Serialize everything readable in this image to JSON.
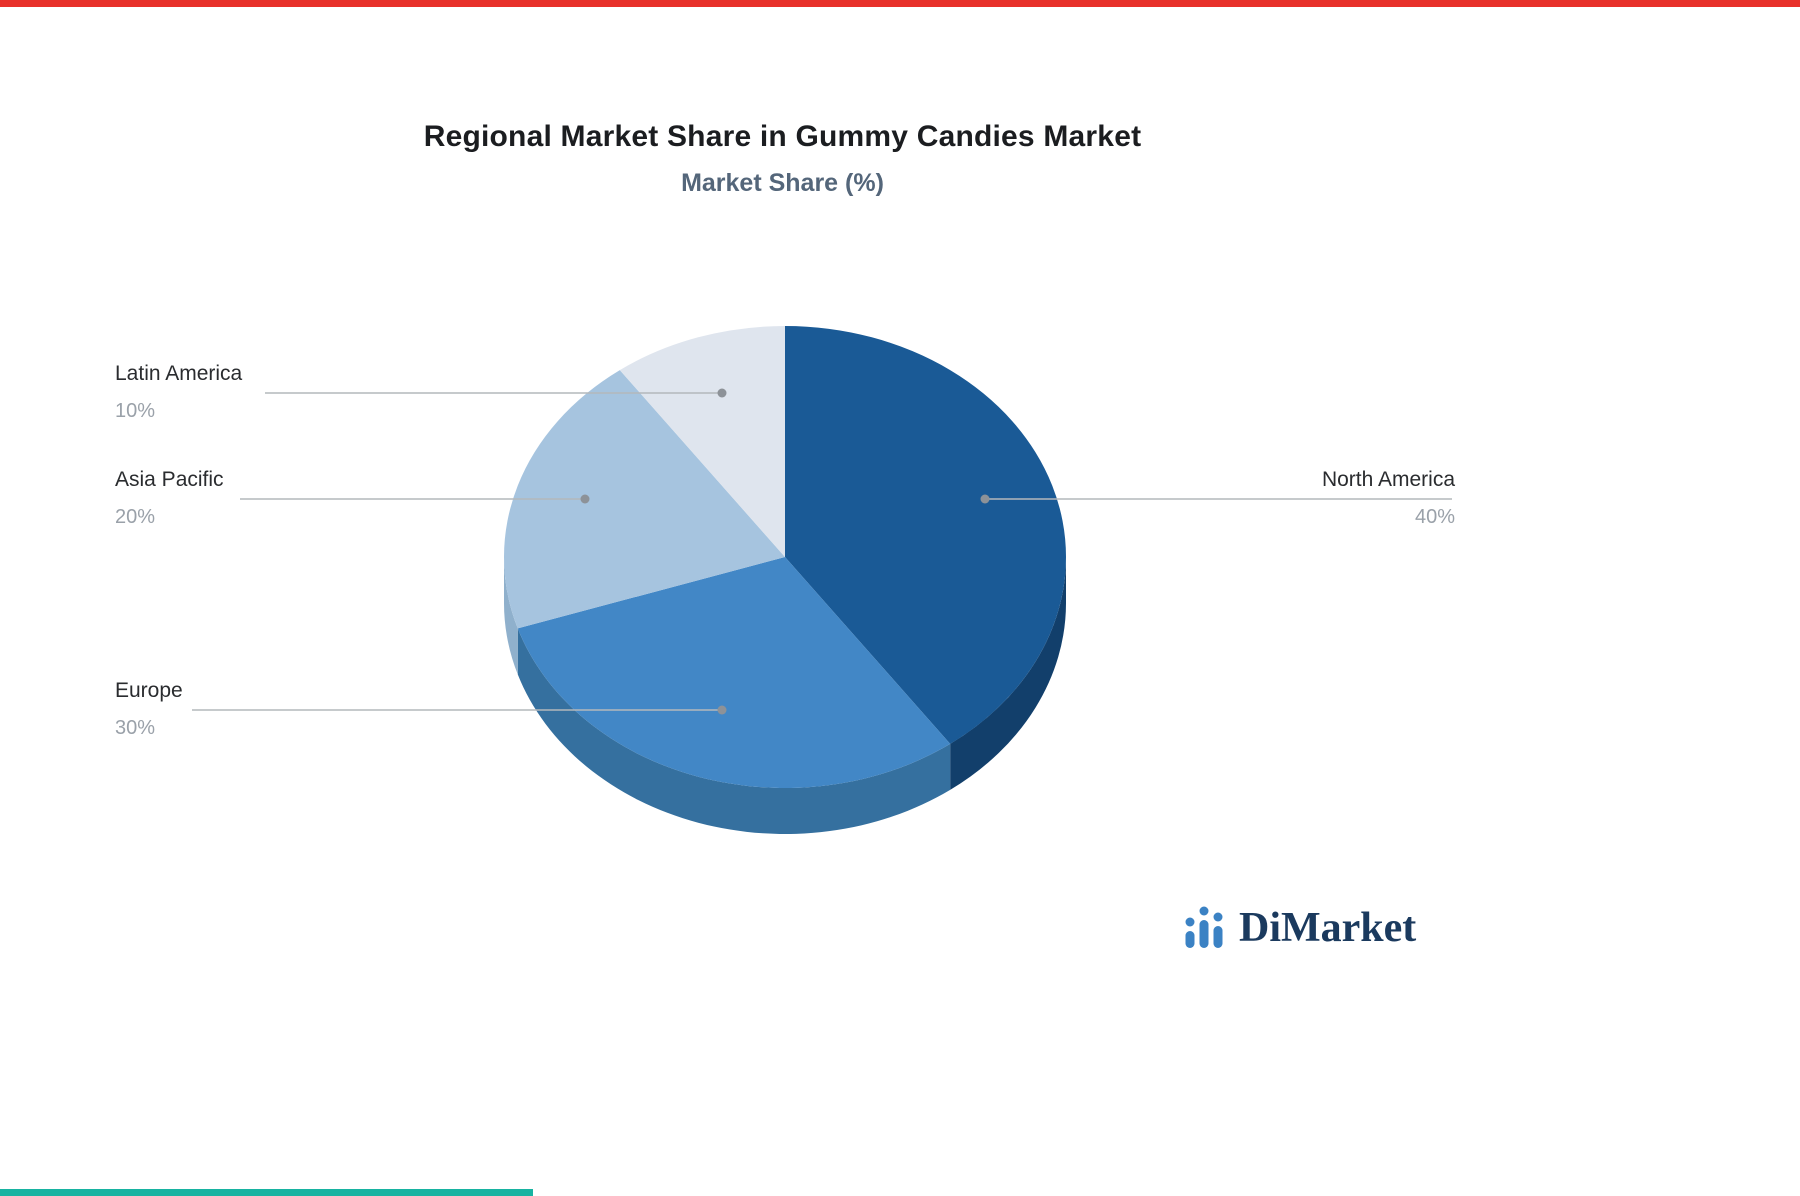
{
  "chart_data": {
    "type": "pie",
    "title": "Regional Market Share in Gummy Candies Market",
    "subtitle": "Market Share (%)",
    "start_angle_deg": 0,
    "direction": "clockwise",
    "legend_position": "none",
    "labels_style": "callout-lines",
    "slices": [
      {
        "label": "North America",
        "value": 40,
        "display": "40%",
        "color": "#1a5a96",
        "side_color": "#123f6b"
      },
      {
        "label": "Europe",
        "value": 30,
        "display": "30%",
        "color": "#4287c6",
        "side_color": "#35709f"
      },
      {
        "label": "Asia Pacific",
        "value": 20,
        "display": "20%",
        "color": "#a6c4df",
        "side_color": "#8fb0cc"
      },
      {
        "label": "Latin America",
        "value": 10,
        "display": "10%",
        "color": "#dfe5ee",
        "side_color": "#bec9d6"
      }
    ]
  },
  "brand": {
    "name": "DiMarket",
    "icon": "bar-chart-icon",
    "icon_color": "#3b82c4",
    "text_color": "#1b3a5e"
  },
  "decorations": {
    "top_bar_color": "#e8312a",
    "bottom_bar_color": "#18b3a1"
  }
}
